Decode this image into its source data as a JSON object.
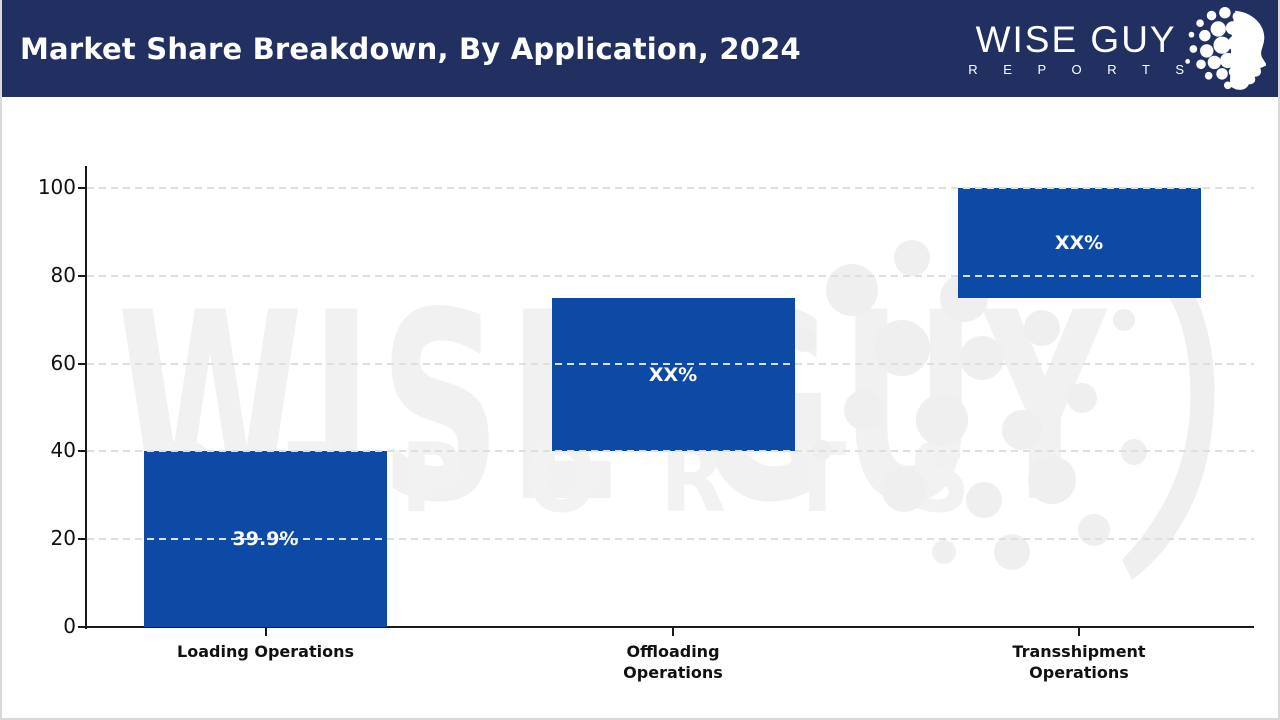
{
  "header": {
    "title": "Market Share Breakdown, By Application, 2024"
  },
  "logo": {
    "name": "WISE GUY",
    "subname": "R E P O R T S",
    "head_icon": "dotted-head-profile"
  },
  "watermark": {
    "line1": "WISE GUY",
    "line2": "R E P O R T S"
  },
  "chart_data": {
    "type": "bar",
    "subtype": "floating-waterfall",
    "title": "Market Share Breakdown, By Application, 2024",
    "categories": [
      [
        "Loading Operations"
      ],
      [
        "Offloading",
        "Operations"
      ],
      [
        "Transshipment",
        "Operations"
      ]
    ],
    "series": [
      {
        "name": "Market Share (%)",
        "bars": [
          {
            "category": "Loading Operations",
            "from": 0,
            "to": 40,
            "label": "39.9%"
          },
          {
            "category": "Offloading Operations",
            "from": 40,
            "to": 75,
            "label": "XX%"
          },
          {
            "category": "Transshipment Operations",
            "from": 75,
            "to": 100,
            "label": "XX%"
          }
        ]
      }
    ],
    "xlabel": "",
    "ylabel": "",
    "yticks": [
      0,
      20,
      40,
      60,
      80,
      100
    ],
    "ylim": [
      0,
      105
    ],
    "grid": {
      "horizontal": true,
      "style": "dashed",
      "over_bars": true
    },
    "legend": "none",
    "bar_color": "#0d4aa6",
    "bar_label_color": "#ffffff"
  },
  "colors": {
    "header_bg": "#213061",
    "bar_fill": "#0d4aa6",
    "axis": "#1a1a1a",
    "gridline": "#dfdfdf",
    "watermark": "#f1f1f1",
    "page_bg": "#ffffff",
    "frame_border": "#d9d9d9"
  }
}
